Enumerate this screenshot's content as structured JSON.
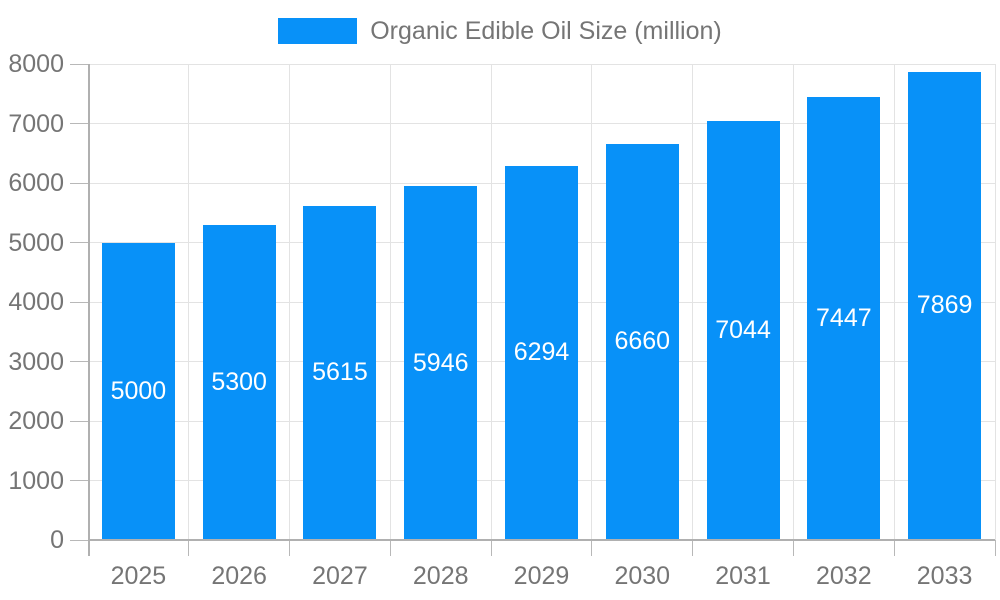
{
  "legend": {
    "label": "Organic Edible Oil Size (million)"
  },
  "chart_data": {
    "type": "bar",
    "title": "",
    "xlabel": "",
    "ylabel": "",
    "categories": [
      "2025",
      "2026",
      "2027",
      "2028",
      "2029",
      "2030",
      "2031",
      "2032",
      "2033"
    ],
    "series": [
      {
        "name": "Organic Edible Oil Size (million)",
        "values": [
          5000,
          5300,
          5615,
          5946,
          6294,
          6660,
          7044,
          7447,
          7869
        ]
      }
    ],
    "ylim": [
      0,
      8000
    ],
    "ytick_step": 1000,
    "yticks": [
      0,
      1000,
      2000,
      3000,
      4000,
      5000,
      6000,
      7000,
      8000
    ],
    "grid": true,
    "legend_position": "top",
    "bar_labels_visible": true,
    "colors": {
      "bar": "#0891f8",
      "bar_label": "#ffffff",
      "axis_text": "#757575",
      "gridline": "#e3e3e3",
      "axis_line": "#b0b0b0",
      "background": "#ffffff"
    }
  }
}
